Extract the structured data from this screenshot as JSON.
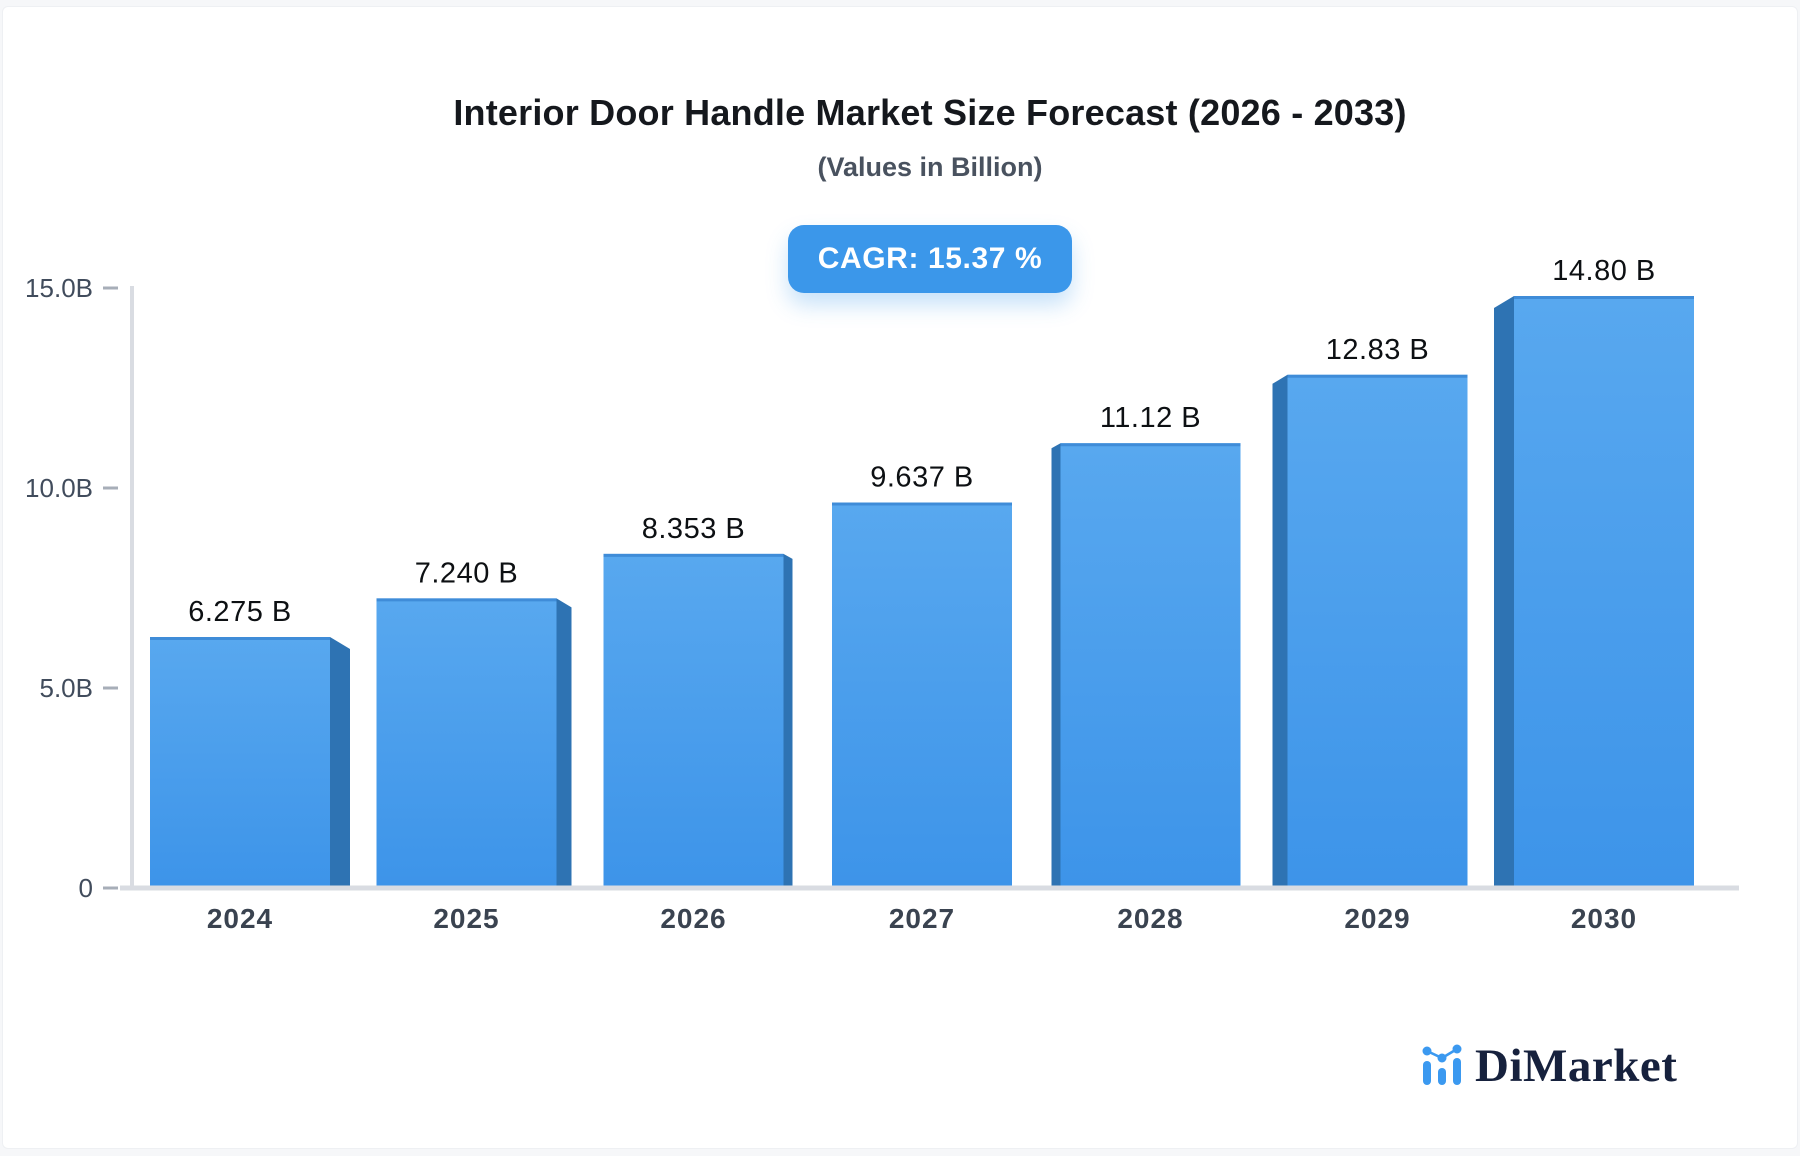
{
  "colors": {
    "page_background": "#f6f7f9",
    "card_background": "#ffffff",
    "accent_blue": "#3b97ea",
    "bar_face_top": "#58a8ef",
    "bar_face_bottom": "#3d94e9",
    "bar_side": "#2e73b3",
    "bar_top_edge": "#3f8cd8",
    "axis_line": "#d9dce2",
    "tick_mark": "#a7aeb8",
    "tick_label": "#414c5c",
    "year_label": "#3a4350",
    "value_label": "#0d1013",
    "title_color": "#15181d",
    "subtitle_color": "#49525f",
    "logo_blue": "#3b99f0",
    "logo_text_color": "#16213d"
  },
  "header": {
    "title": "Interior Door Handle Market Size Forecast (2026 - 2033)",
    "subtitle": "(Values in Billion)",
    "cagr_badge": "CAGR: 15.37 %"
  },
  "chart_data": {
    "type": "bar",
    "title": "Interior Door Handle Market Size Forecast (2026 - 2033)",
    "subtitle": "(Values in Billion)",
    "unit": "Billion",
    "cagr_percent": 15.37,
    "categories": [
      "2024",
      "2025",
      "2026",
      "2027",
      "2028",
      "2029",
      "2030"
    ],
    "values": [
      6.275,
      7.24,
      8.353,
      9.637,
      11.12,
      12.83,
      14.8
    ],
    "value_labels": [
      "6.275 B",
      "7.240 B",
      "8.353 B",
      "9.637 B",
      "11.12 B",
      "12.83 B",
      "14.80 B"
    ],
    "ylim": [
      0,
      15
    ],
    "yticks": [
      {
        "value": 15,
        "label": "15.0B"
      },
      {
        "value": 10,
        "label": "10.0B"
      },
      {
        "value": 5,
        "label": "5.0B"
      },
      {
        "value": 0,
        "label": "0"
      }
    ],
    "grid": false,
    "legend": false,
    "bar_style": "3d-extruded",
    "xlabel": "",
    "ylabel": ""
  },
  "branding": {
    "logo_text": "DiMarket",
    "logo_icon": "mini-bar-line-chart-icon"
  }
}
